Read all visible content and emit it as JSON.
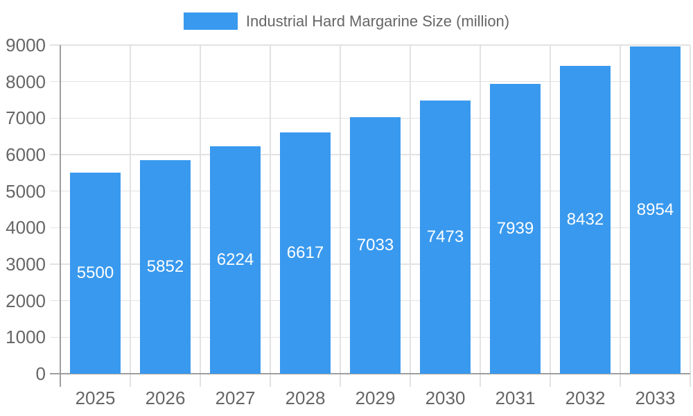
{
  "chart_data": {
    "type": "bar",
    "title": "Industrial Hard Margarine Size (million)",
    "categories": [
      "2025",
      "2026",
      "2027",
      "2028",
      "2029",
      "2030",
      "2031",
      "2032",
      "2033"
    ],
    "values": [
      5500,
      5852,
      6224,
      6617,
      7033,
      7473,
      7939,
      8432,
      8954
    ],
    "xlabel": "",
    "ylabel": "",
    "ylim": [
      0,
      9000
    ],
    "ytick_step": 1000,
    "grid": true,
    "legend_position": "top",
    "value_labels": "centered-in-bar",
    "style": {
      "bar_color": "#3999EE",
      "value_text": "#FFFFFF",
      "grid_color": "#E2E2E2",
      "axis_color": "#9E9E9E",
      "tick_text": "#666666",
      "legend_text": "#666666",
      "background": "#FFFFFF"
    }
  }
}
